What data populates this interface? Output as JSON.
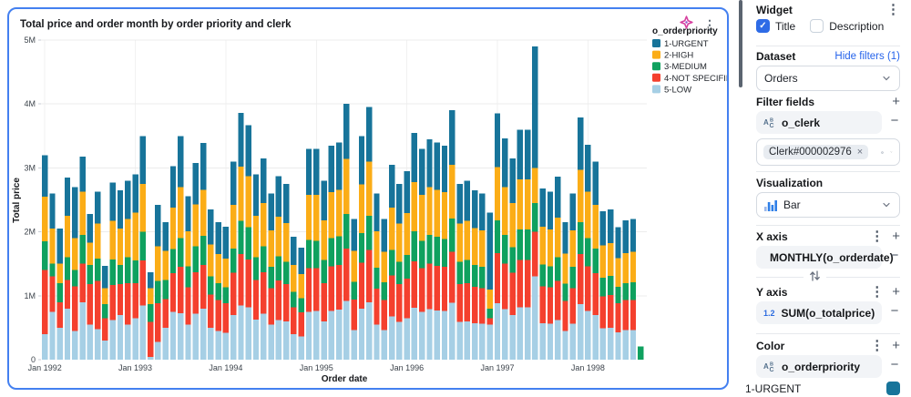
{
  "icons": {
    "kebab": "⋮",
    "plus": "+",
    "minus": "−",
    "check": "✓",
    "close": "×"
  },
  "chart_widget": {
    "title": "Total price and order month by order priority and clerk"
  },
  "chart_data": {
    "type": "bar",
    "stacked": true,
    "title": "Total price and order month by order priority and clerk",
    "xlabel": "Order date",
    "ylabel": "Total price",
    "x_tick_labels": [
      "Jan 1992",
      "Jan 1993",
      "Jan 1994",
      "Jan 1995",
      "Jan 1996",
      "Jan 1997",
      "Jan 1998"
    ],
    "y_tick_labels": [
      "0",
      "1M",
      "2M",
      "3M",
      "4M",
      "5M"
    ],
    "ylim": [
      0,
      5000000
    ],
    "values_unit": "M",
    "grid": true,
    "legend_position": "right",
    "legend_title": "o_orderpriority",
    "legend_order": [
      "1-URGENT",
      "2-HIGH",
      "3-MEDIUM",
      "4-NOT SPECIFIED",
      "5-LOW"
    ],
    "stack_order_bottom_to_top": [
      "5-LOW",
      "4-NOT SPECIFIED",
      "3-MEDIUM",
      "2-HIGH",
      "1-URGENT"
    ],
    "x_range": {
      "start": "1992-01",
      "end": "1998-08",
      "months": 80
    },
    "x_categories": [
      "1992-01",
      "1992-02",
      "1992-03",
      "1992-04",
      "1992-05",
      "1992-06",
      "1992-07",
      "1992-08",
      "1992-09",
      "1992-10",
      "1992-11",
      "1992-12",
      "1993-01",
      "1993-02",
      "1993-03",
      "1993-04",
      "1993-05",
      "1993-06",
      "1993-07",
      "1993-08",
      "1993-09",
      "1993-10",
      "1993-11",
      "1993-12",
      "1994-01",
      "1994-02",
      "1994-03",
      "1994-04",
      "1994-05",
      "1994-06",
      "1994-07",
      "1994-08",
      "1994-09",
      "1994-10",
      "1994-11",
      "1994-12",
      "1995-01",
      "1995-02",
      "1995-03",
      "1995-04",
      "1995-05",
      "1995-06",
      "1995-07",
      "1995-08",
      "1995-09",
      "1995-10",
      "1995-11",
      "1995-12",
      "1996-01",
      "1996-02",
      "1996-03",
      "1996-04",
      "1996-05",
      "1996-06",
      "1996-07",
      "1996-08",
      "1996-09",
      "1996-10",
      "1996-11",
      "1996-12",
      "1997-01",
      "1997-02",
      "1997-03",
      "1997-04",
      "1997-05",
      "1997-06",
      "1997-07",
      "1997-08",
      "1997-09",
      "1997-10",
      "1997-11",
      "1997-12",
      "1998-01",
      "1998-02",
      "1998-03",
      "1998-04",
      "1998-05",
      "1998-06",
      "1998-07",
      "1998-08"
    ],
    "series": [
      {
        "name": "5-LOW",
        "color": "#a6cfe5",
        "values": [
          0.4,
          0.75,
          0.5,
          0.8,
          0.45,
          0.9,
          0.55,
          0.48,
          0.3,
          0.62,
          0.7,
          0.55,
          0.65,
          0.85,
          0.04,
          0.28,
          0.5,
          0.75,
          0.73,
          0.55,
          0.72,
          0.8,
          0.5,
          0.45,
          0.42,
          0.7,
          0.85,
          0.82,
          0.63,
          0.72,
          0.55,
          0.62,
          0.6,
          0.4,
          0.36,
          0.75,
          0.76,
          0.6,
          0.76,
          0.78,
          0.92,
          0.46,
          0.8,
          0.9,
          0.55,
          0.46,
          0.68,
          0.59,
          0.65,
          0.81,
          0.75,
          0.79,
          0.77,
          0.76,
          0.89,
          0.59,
          0.6,
          0.57,
          0.56,
          0.55,
          0.88,
          0.79,
          0.7,
          0.82,
          0.82,
          1.3,
          0.57,
          0.56,
          0.62,
          0.45,
          0.56,
          0.87,
          0.76,
          0.7,
          0.49,
          0.5,
          0.43,
          0.46,
          0.46,
          0.0
        ]
      },
      {
        "name": "4-NOT SPECIFIED",
        "color": "#f4402e",
        "values": [
          1.0,
          0.55,
          0.4,
          0.45,
          0.7,
          0.6,
          0.63,
          0.75,
          0.35,
          0.55,
          0.48,
          0.65,
          0.55,
          0.7,
          0.55,
          0.6,
          0.45,
          0.6,
          0.72,
          0.58,
          0.65,
          0.68,
          0.52,
          0.48,
          0.46,
          0.66,
          0.8,
          0.75,
          0.62,
          0.65,
          0.57,
          0.62,
          0.58,
          0.42,
          0.38,
          0.68,
          0.67,
          0.6,
          0.7,
          0.7,
          0.82,
          0.48,
          0.72,
          0.82,
          0.56,
          0.47,
          0.64,
          0.59,
          0.62,
          0.73,
          0.68,
          0.71,
          0.7,
          0.69,
          0.8,
          0.59,
          0.6,
          0.57,
          0.56,
          0.1,
          0.79,
          0.71,
          0.66,
          0.74,
          0.74,
          0.7,
          0.58,
          0.57,
          0.61,
          0.47,
          0.56,
          0.78,
          0.7,
          0.65,
          0.5,
          0.51,
          0.45,
          0.47,
          0.47,
          0.0
        ]
      },
      {
        "name": "3-MEDIUM",
        "color": "#0fa15f",
        "values": [
          0.45,
          0.2,
          0.3,
          0.35,
          0.25,
          0.45,
          0.3,
          0.35,
          0.22,
          0.4,
          0.3,
          0.4,
          0.35,
          0.45,
          0.28,
          0.35,
          0.3,
          0.38,
          0.45,
          0.33,
          0.4,
          0.46,
          0.28,
          0.27,
          0.25,
          0.38,
          0.52,
          0.5,
          0.35,
          0.4,
          0.33,
          0.38,
          0.35,
          0.24,
          0.22,
          0.44,
          0.43,
          0.36,
          0.44,
          0.45,
          0.54,
          0.28,
          0.46,
          0.53,
          0.33,
          0.28,
          0.4,
          0.35,
          0.37,
          0.47,
          0.43,
          0.45,
          0.45,
          0.44,
          0.52,
          0.35,
          0.36,
          0.34,
          0.33,
          0.15,
          0.51,
          0.45,
          0.4,
          0.48,
          0.48,
          0.45,
          0.34,
          0.33,
          0.37,
          0.27,
          0.33,
          0.5,
          0.44,
          0.39,
          0.29,
          0.3,
          0.26,
          0.27,
          0.28,
          0.21
        ]
      },
      {
        "name": "2-HIGH",
        "color": "#fbad17",
        "values": [
          0.7,
          0.55,
          0.3,
          0.65,
          0.5,
          0.68,
          0.35,
          0.55,
          0.25,
          0.6,
          0.57,
          0.6,
          0.75,
          0.75,
          0.25,
          0.54,
          0.45,
          0.65,
          0.8,
          0.55,
          0.66,
          0.72,
          0.5,
          0.45,
          0.45,
          0.68,
          0.85,
          0.8,
          0.65,
          0.68,
          0.57,
          0.62,
          0.61,
          0.42,
          0.38,
          0.71,
          0.72,
          0.62,
          0.72,
          0.73,
          0.86,
          0.48,
          0.76,
          0.85,
          0.57,
          0.48,
          0.66,
          0.6,
          0.65,
          0.77,
          0.72,
          0.75,
          0.74,
          0.73,
          0.84,
          0.6,
          0.61,
          0.58,
          0.57,
          0.3,
          0.83,
          0.75,
          0.69,
          0.78,
          0.78,
          0.55,
          0.59,
          0.58,
          0.62,
          0.47,
          0.57,
          0.82,
          0.73,
          0.68,
          0.51,
          0.51,
          0.45,
          0.47,
          0.48,
          0.0
        ]
      },
      {
        "name": "1-URGENT",
        "color": "#17749a",
        "values": [
          0.65,
          0.55,
          0.55,
          0.6,
          0.8,
          0.55,
          0.45,
          0.5,
          0.35,
          0.6,
          0.6,
          0.6,
          0.6,
          0.75,
          0.25,
          0.65,
          0.45,
          0.65,
          0.8,
          0.55,
          0.65,
          0.73,
          0.55,
          0.5,
          0.5,
          0.68,
          0.84,
          0.8,
          0.65,
          0.7,
          0.58,
          0.63,
          0.61,
          0.44,
          0.41,
          0.72,
          0.72,
          0.62,
          0.73,
          0.74,
          0.86,
          0.5,
          0.76,
          0.85,
          0.59,
          0.51,
          0.67,
          0.62,
          0.66,
          0.77,
          0.72,
          0.75,
          0.74,
          0.73,
          0.85,
          0.62,
          0.63,
          0.59,
          0.58,
          1.2,
          0.84,
          0.76,
          0.7,
          0.78,
          0.78,
          1.9,
          0.6,
          0.59,
          0.64,
          0.49,
          0.58,
          0.82,
          0.73,
          0.68,
          0.53,
          0.53,
          0.48,
          0.51,
          0.51,
          0.0
        ]
      }
    ]
  },
  "sidebar": {
    "widget": {
      "label": "Widget",
      "title_checkbox": "Title",
      "description_checkbox": "Description",
      "title_checked": true,
      "description_checked": false
    },
    "dataset": {
      "label": "Dataset",
      "hide_filters_link": "Hide filters (1)",
      "value": "Orders"
    },
    "filter_fields": {
      "label": "Filter fields",
      "field": "o_clerk",
      "value_tag": "Clerk#000002976"
    },
    "visualization": {
      "label": "Visualization",
      "value": "Bar"
    },
    "x_axis": {
      "label": "X axis",
      "field": "MONTHLY(o_orderdate)"
    },
    "y_axis": {
      "label": "Y axis",
      "field": "SUM(o_totalprice)",
      "icon_text": "1.2"
    },
    "color": {
      "label": "Color",
      "field": "o_orderpriority",
      "legend_item": "1-URGENT"
    }
  }
}
